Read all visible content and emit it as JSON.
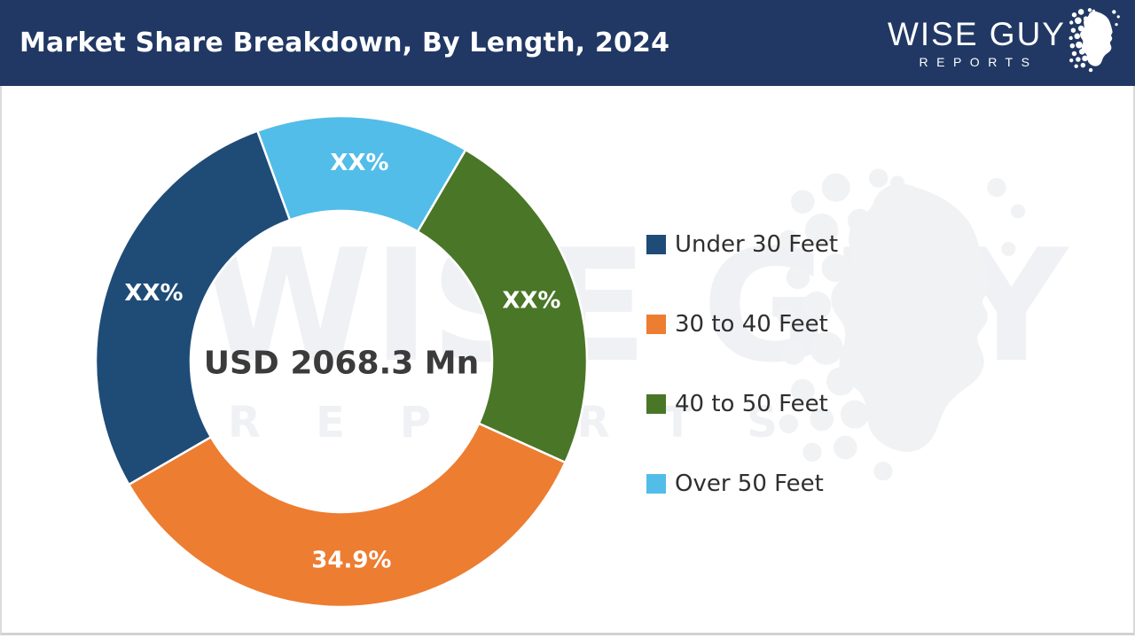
{
  "header": {
    "title": "Market Share Breakdown, By Length, 2024",
    "background_color": "#213864"
  },
  "logo": {
    "line1": "WISE GUY",
    "line2": "REPORTS"
  },
  "watermark": {
    "line1": "WISE GUY",
    "line2": "REPORTS"
  },
  "chart_data": {
    "type": "pie",
    "donut": true,
    "title": "Market Share Breakdown, By Length, 2024",
    "center_label": "USD 2068.3 Mn",
    "start_angle_deg_from_top": -20,
    "direction": "counterclockwise",
    "legend_position": "right",
    "segments": [
      {
        "label": "Under 30 Feet",
        "value_label": "XX%",
        "est_pct": 27.8,
        "color": "#1E4C77"
      },
      {
        "label": "30 to 40 Feet",
        "value_label": "34.9%",
        "est_pct": 34.9,
        "color": "#ED7D31"
      },
      {
        "label": "40 to 50 Feet",
        "value_label": "XX%",
        "est_pct": 23.3,
        "color": "#4A7627"
      },
      {
        "label": "Over 50 Feet",
        "value_label": "XX%",
        "est_pct": 14.0,
        "color": "#52BDE8"
      }
    ]
  }
}
